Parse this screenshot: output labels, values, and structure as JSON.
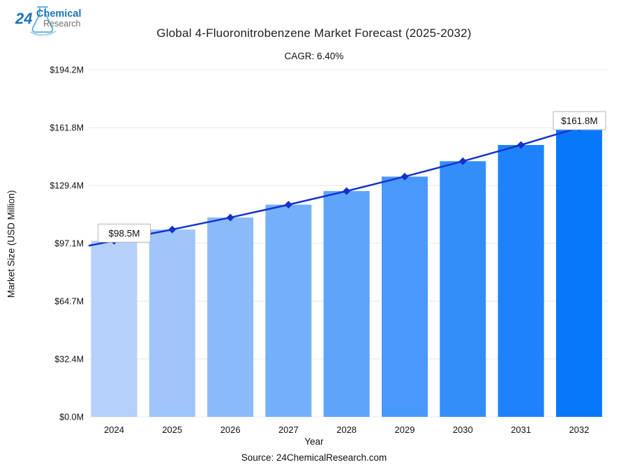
{
  "header": {
    "logo": {
      "number": "24",
      "line1": "Chemical",
      "line2": "Research"
    },
    "title": "Global 4-Fluoronitrobenzene Market Forecast (2025-2032)",
    "subtitle": "CAGR: 6.40%"
  },
  "chart_data": {
    "type": "bar",
    "line_overlay": true,
    "title": "Global 4-Fluoronitrobenzene Market Forecast (2025-2032)",
    "subtitle": "CAGR: 6.40%",
    "categories": [
      "2024",
      "2025",
      "2026",
      "2027",
      "2028",
      "2029",
      "2030",
      "2031",
      "2032"
    ],
    "values": [
      98.5,
      104.8,
      111.5,
      118.7,
      126.3,
      134.4,
      143.0,
      152.1,
      161.8
    ],
    "xlabel": "Year",
    "ylabel": "Market Size (USD Million)",
    "ylim": [
      0,
      194.2
    ],
    "grid": true,
    "legend": "none",
    "y_ticks": [
      {
        "value": 0,
        "label": "$0.0M"
      },
      {
        "value": 32.4,
        "label": "$32.4M"
      },
      {
        "value": 64.7,
        "label": "$64.7M"
      },
      {
        "value": 97.1,
        "label": "$97.1M"
      },
      {
        "value": 129.4,
        "label": "$129.4M"
      },
      {
        "value": 161.8,
        "label": "$161.8M"
      },
      {
        "value": 194.2,
        "label": "$194.2M"
      }
    ],
    "annotations": [
      {
        "index": 0,
        "label": "$98.5M"
      },
      {
        "index": 8,
        "label": "$161.8M"
      }
    ],
    "bar_colors": [
      "#B5D0FA",
      "#9FC5FA",
      "#8ABAFA",
      "#74AFFA",
      "#5EA4FA",
      "#4999FA",
      "#338EFA",
      "#1E83FA",
      "#0878FA"
    ],
    "line_color": "#1433cd",
    "marker_color": "#1330c9",
    "grid_color": "#e8e8e8",
    "annotation_border": "#b5b5b5",
    "annotation_bg": "#ffffff"
  },
  "footer": {
    "source": "Source: 24ChemicalResearch.com"
  }
}
